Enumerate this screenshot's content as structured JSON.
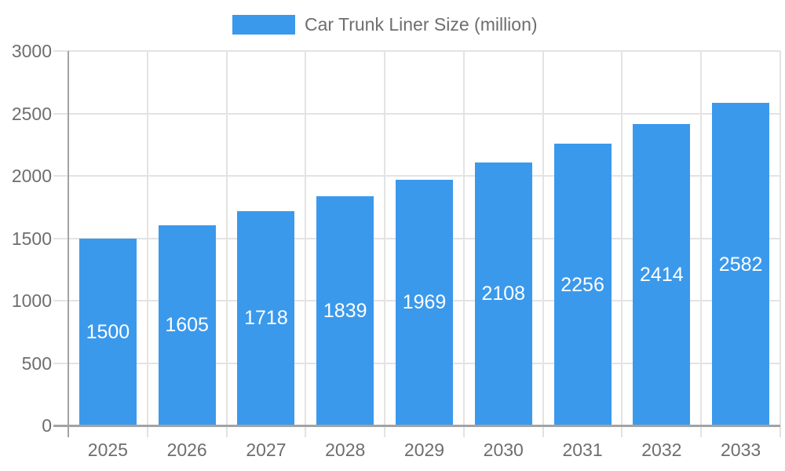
{
  "chart_data": {
    "type": "bar",
    "title": "Car Trunk Liner Size (million)",
    "legend": {
      "label": "Car Trunk Liner Size (million)",
      "position": "top"
    },
    "categories": [
      "2025",
      "2026",
      "2027",
      "2028",
      "2029",
      "2030",
      "2031",
      "2032",
      "2033"
    ],
    "values": [
      1500,
      1605,
      1718,
      1839,
      1969,
      2108,
      2256,
      2414,
      2582
    ],
    "xlabel": "",
    "ylabel": "",
    "ylim": [
      0,
      3000
    ],
    "yticks": [
      0,
      500,
      1000,
      1500,
      2000,
      2500,
      3000
    ],
    "grid": true,
    "colors": {
      "bar": "#3B99EC",
      "bar_value_text": "#ffffff",
      "axis_text": "#6e6e6e",
      "gridline": "#e3e3e3",
      "axis_line": "#a3a3a3",
      "background": "#ffffff"
    }
  }
}
